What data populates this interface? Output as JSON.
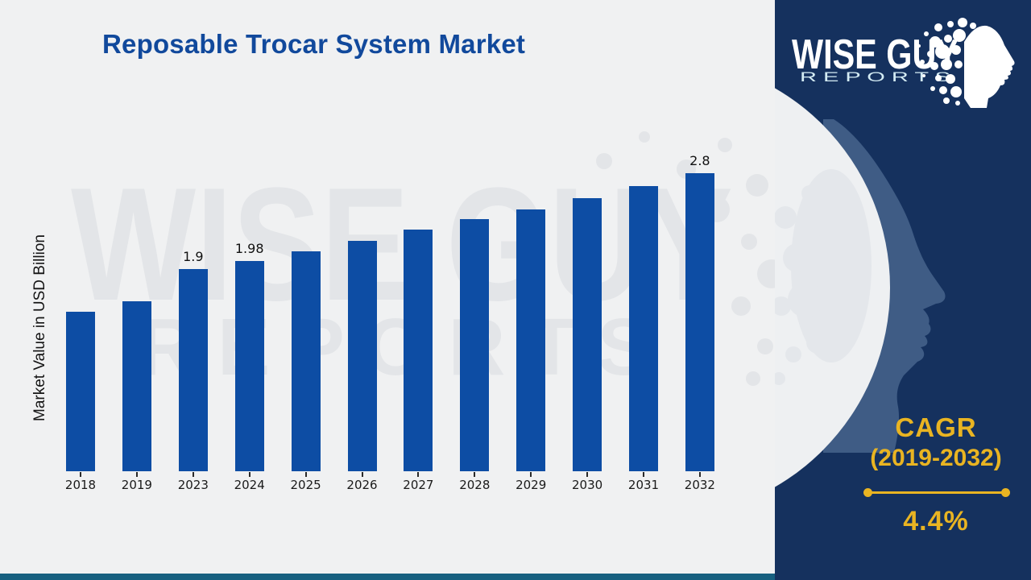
{
  "header": {
    "title": "Reposable Trocar System Market"
  },
  "watermark": {
    "line1": "WISE GUY",
    "line2": "R E P O R T S"
  },
  "logo": {
    "line1": "WISE GUY",
    "line2": "R E P O R T S"
  },
  "cagr": {
    "heading": "CAGR",
    "range": "(2019-2032)",
    "value": "4.4%"
  },
  "colors": {
    "title_blue": "#11499c",
    "bar_blue": "#0d4da4",
    "navy": "#15315e",
    "gold": "#e9b422",
    "teal": "#176080",
    "watermark_gray": "#e3e5e8",
    "face_blue": "#3f5c85"
  },
  "chart_data": {
    "type": "bar",
    "title": "Reposable Trocar System Market",
    "xlabel": "",
    "ylabel": "Market Value in USD Billion",
    "unit": "USD Billion",
    "categories": [
      "2018",
      "2019",
      "2023",
      "2024",
      "2025",
      "2026",
      "2027",
      "2028",
      "2029",
      "2030",
      "2031",
      "2032"
    ],
    "values": [
      1.5,
      1.6,
      1.9,
      1.98,
      2.07,
      2.17,
      2.27,
      2.37,
      2.46,
      2.57,
      2.68,
      2.8
    ],
    "point_labels": {
      "2023": "1.9",
      "2024": "1.98",
      "2032": "2.8"
    },
    "ylim": [
      0,
      3.2
    ],
    "grid": false,
    "legend": "none",
    "bar_color": "#0d4da4",
    "cagr_percent": 4.4,
    "cagr_period": "2019-2032"
  }
}
